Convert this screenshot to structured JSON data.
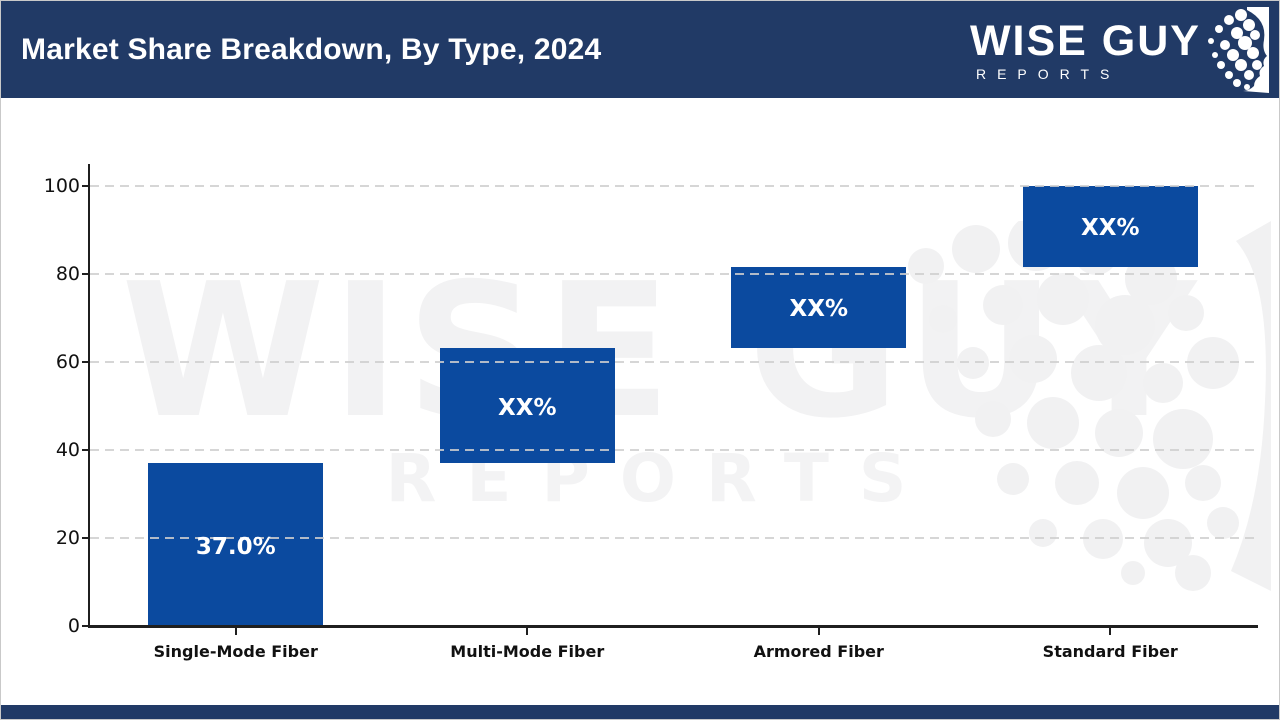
{
  "header": {
    "title": "Market Share Breakdown, By Type, 2024",
    "brand_line1": "WISE GUY",
    "brand_line2": "REPORTS"
  },
  "watermark": {
    "line1": "WISE GUY",
    "line2": "REPORTS"
  },
  "colors": {
    "header_bg": "#213A66",
    "footer_bg": "#213A66",
    "bar": "#0B4A9F",
    "bar_label": "#FFFFFF",
    "grid": "#CFCFCF",
    "axis": "#1F1F1F",
    "watermark": "#F2F2F3"
  },
  "chart_data": {
    "type": "bar",
    "subtype": "waterfall-floating-bars",
    "title": "Market Share Breakdown, By Type, 2024",
    "categories": [
      "Single-Mode Fiber",
      "Multi-Mode Fiber",
      "Armored Fiber",
      "Standard Fiber"
    ],
    "segments": [
      {
        "category": "Single-Mode Fiber",
        "start": 0,
        "end": 37.0,
        "label": "37.0%"
      },
      {
        "category": "Multi-Mode Fiber",
        "start": 37.0,
        "end": 63.2,
        "label": "XX%"
      },
      {
        "category": "Armored Fiber",
        "start": 63.2,
        "end": 81.6,
        "label": "XX%"
      },
      {
        "category": "Standard Fiber",
        "start": 81.6,
        "end": 100.0,
        "label": "XX%"
      }
    ],
    "xlabel": "",
    "ylabel": "",
    "yticks": [
      0,
      20,
      40,
      60,
      80,
      100
    ],
    "ylim": [
      0,
      100
    ],
    "grid": {
      "horizontal": true,
      "style": "dashed"
    },
    "legend": "none"
  }
}
